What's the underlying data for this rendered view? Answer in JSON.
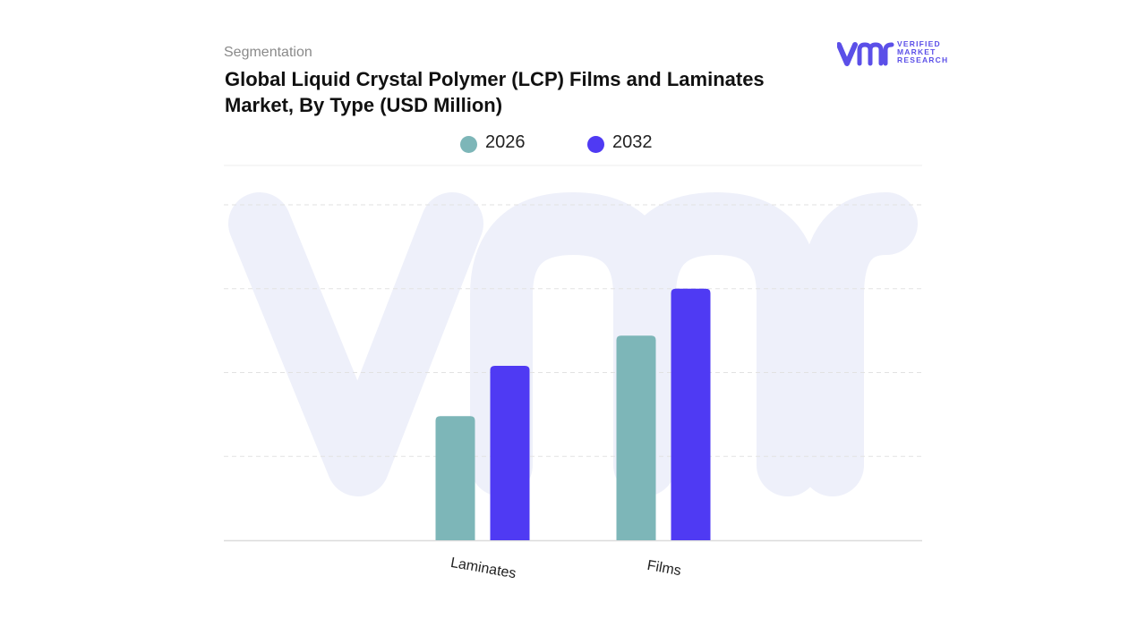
{
  "header": {
    "segmentation_label": "Segmentation",
    "title": "Global Liquid Crystal Polymer (LCP) Films and Laminates Market, By Type (USD Million)"
  },
  "logo": {
    "icon": "vmr-logo-icon",
    "line1": "VERIFIED",
    "line2": "MARKET",
    "line3": "RESEARCH",
    "color": "#5b4fe8"
  },
  "chart_data": {
    "type": "bar",
    "categories": [
      "Laminates",
      "Films"
    ],
    "series": [
      {
        "name": "2026",
        "color": "#7db6b8",
        "values": [
          37,
          61
        ]
      },
      {
        "name": "2032",
        "color": "#4f3af3",
        "values": [
          52,
          75
        ]
      }
    ],
    "ylim": [
      0,
      100
    ],
    "grid": true,
    "legend_position": "top-center",
    "xlabel": "",
    "ylabel": ""
  }
}
